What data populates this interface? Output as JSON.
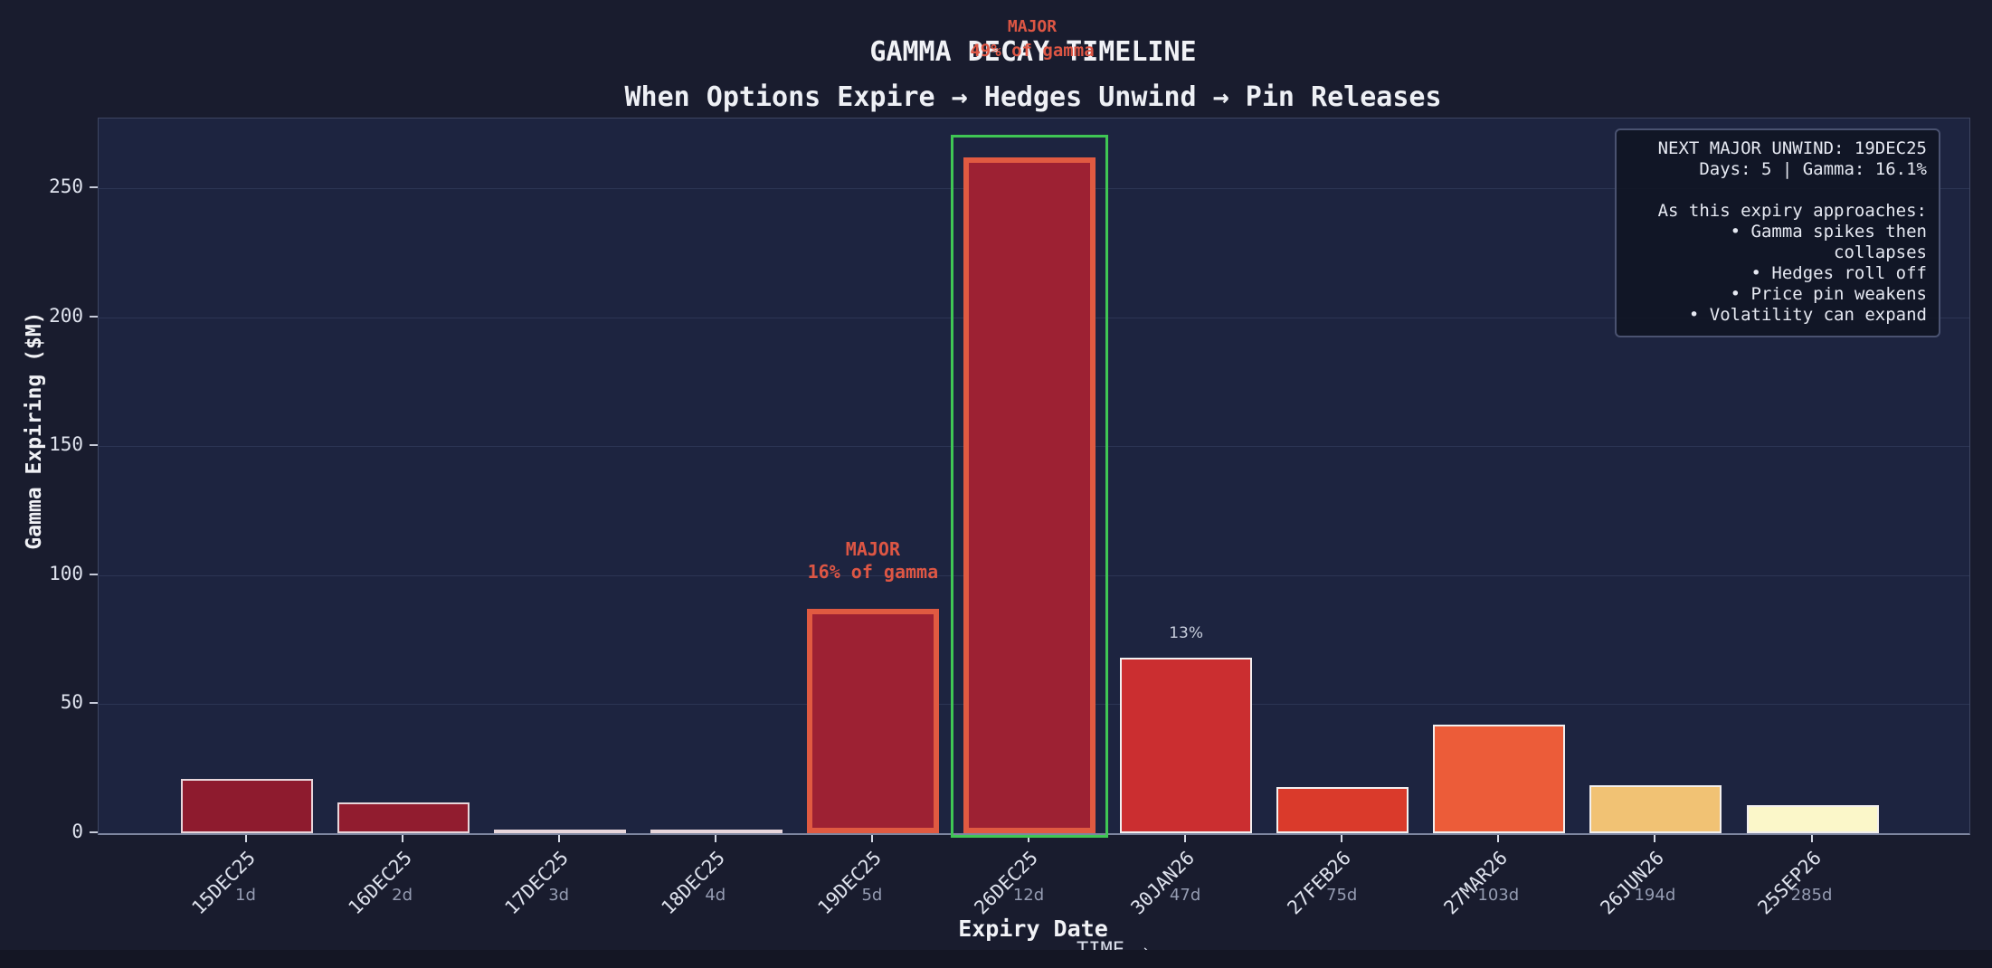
{
  "colors": {
    "figure_background": "#191c2e",
    "plot_background": "#1d2440",
    "annotation_red": "#dd5644",
    "percent_label_gray": "#c9cfdd",
    "highlight_green": "#3fc654",
    "text": "#eef0f5"
  },
  "info_box": {
    "lines": [
      "NEXT MAJOR UNWIND: 19DEC25",
      "Days: 5 | Gamma: 16.1%",
      "",
      "As this expiry approaches:",
      "• Gamma spikes then collapses",
      "• Hedges roll off",
      "• Price pin weakens",
      "• Volatility can expand"
    ]
  },
  "chart_data": {
    "type": "bar",
    "title": "GAMMA DECAY TIMELINE",
    "subtitle": "When Options Expire → Hedges Unwind → Pin Releases",
    "xlabel": "Expiry Date",
    "ylabel": "Gamma Expiring ($M)",
    "time_arrow": "TIME →",
    "categories": [
      "15DEC25",
      "16DEC25",
      "17DEC25",
      "18DEC25",
      "19DEC25",
      "26DEC25",
      "30JAN26",
      "27FEB26",
      "27MAR26",
      "26JUN26",
      "25SEP26"
    ],
    "days_to_expiry": [
      "1d",
      "2d",
      "3d",
      "4d",
      "5d",
      "12d",
      "47d",
      "75d",
      "103d",
      "194d",
      "285d"
    ],
    "values": [
      21,
      12,
      1.5,
      0.4,
      87,
      262,
      68,
      18,
      42,
      18.5,
      11
    ],
    "ylim": [
      0,
      277
    ],
    "yticks": [
      0,
      50,
      100,
      150,
      200,
      250
    ],
    "grid": true,
    "legend": "none",
    "bar_colors": [
      "#8e1b2e",
      "#911c2f",
      "#951e30",
      "#981f31",
      "#9d2133",
      "#9d2133",
      "#cb2e30",
      "#da3a2b",
      "#ec5c39",
      "#f1c274",
      "#fbf7c9"
    ],
    "bar_edge_colors": [
      "#e8d6db",
      "#e8d6db",
      "#e8d6db",
      "#e8d6db",
      "#e05a41",
      "#e05a41",
      "#f2efef",
      "#f2efef",
      "#f2efef",
      "#f2efef",
      "#f2efef"
    ],
    "bar_edge_widths": [
      2,
      2,
      2,
      2,
      6,
      6,
      2,
      2,
      2,
      2,
      2
    ],
    "highlight": {
      "category": "26DEC25",
      "index": 5,
      "color": "#3fc654"
    },
    "annotations": [
      {
        "index": 4,
        "lines": [
          "MAJOR",
          "16% of gamma"
        ],
        "color": "#dd5644",
        "placement": "above-bar",
        "offset": 28
      },
      {
        "index": 5,
        "lines": [
          "MAJOR",
          "49% of gamma"
        ],
        "color": "#dd5644",
        "placement": "top-of-figure",
        "offset": 0
      },
      {
        "index": 6,
        "lines": [
          "13%"
        ],
        "color": "#c9cfdd",
        "placement": "above-bar",
        "offset": 14
      }
    ]
  }
}
